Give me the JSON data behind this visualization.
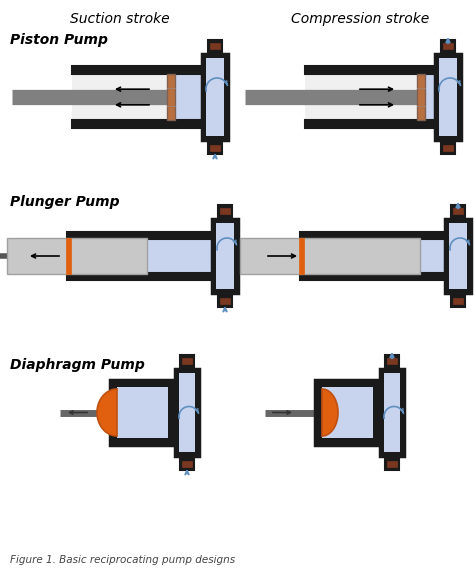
{
  "title_suction": "Suction stroke",
  "title_compression": "Compression stroke",
  "label_piston": "Piston Pump",
  "label_plunger": "Plunger Pump",
  "label_diaphragm": "Diaphragm Pump",
  "caption": "Figure 1. Basic reciprocating pump designs",
  "bg_color": "#ffffff",
  "pump_blue": "#c8d4ee",
  "pump_dark": "#1a1a1a",
  "pump_white": "#f0f0f0",
  "pump_gray_rod": "#808080",
  "pump_piston_fill": "#b87040",
  "pump_plunger_fill": "#c8c8c8",
  "pump_orange": "#e06010",
  "arrow_blue": "#6090c0",
  "valve_brown": "#7a3820",
  "lw_outer": 2.5,
  "lw_inner": 1.5
}
